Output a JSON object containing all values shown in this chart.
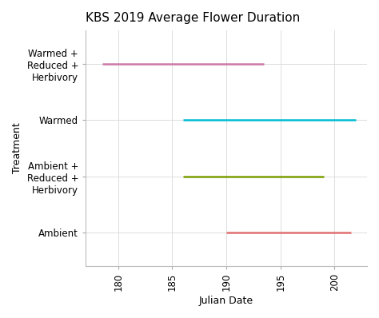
{
  "title": "KBS 2019 Average Flower Duration",
  "xlabel": "Julian Date",
  "ylabel": "Treatment",
  "treatments": [
    "Warmed +\nReduced +\nHerbivory",
    "Warmed",
    "Ambient +\nReduced +\nHerbivory",
    "Ambient"
  ],
  "lines": [
    {
      "y": 0,
      "x_start": 178.5,
      "x_end": 193.5,
      "color": "#CC79A7"
    },
    {
      "y": 1,
      "x_start": 186.0,
      "x_end": 202.0,
      "color": "#00BCD4"
    },
    {
      "y": 2,
      "x_start": 186.0,
      "x_end": 199.0,
      "color": "#7B9E00"
    },
    {
      "y": 3,
      "x_start": 190.0,
      "x_end": 201.5,
      "color": "#E07070"
    }
  ],
  "xlim": [
    177,
    203
  ],
  "xticks": [
    180,
    185,
    190,
    195,
    200
  ],
  "ylim": [
    -0.6,
    3.6
  ],
  "line_width": 1.8,
  "background_color": "#ffffff",
  "grid_color": "#dddddd",
  "title_fontsize": 11,
  "label_fontsize": 9,
  "tick_fontsize": 8.5
}
